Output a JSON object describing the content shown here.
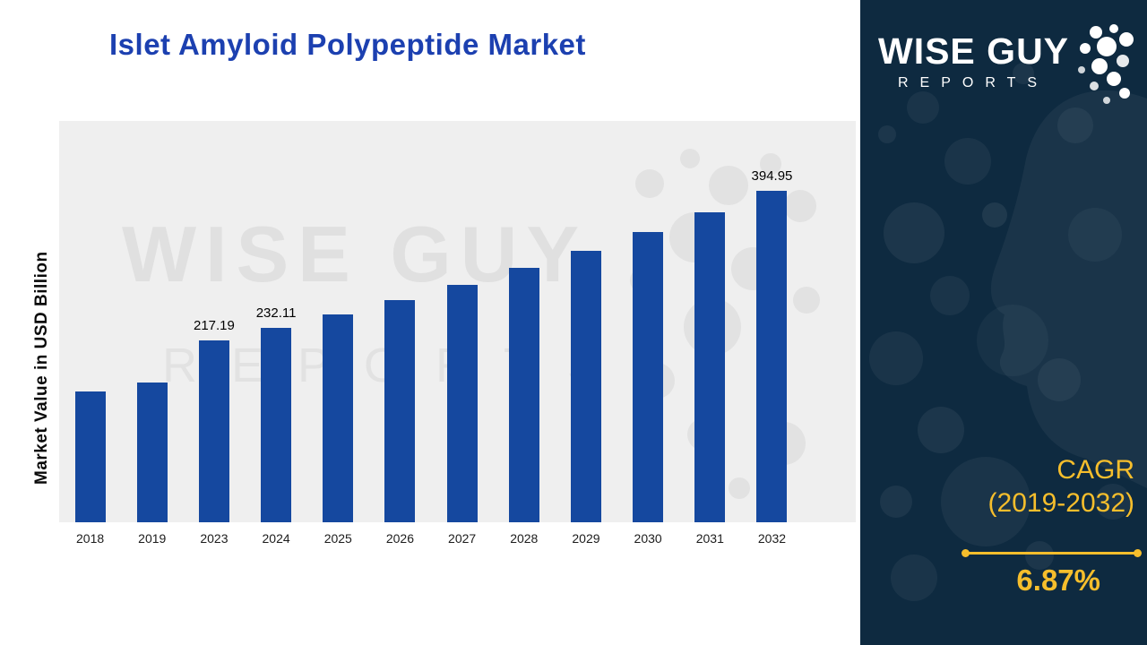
{
  "title": "Islet Amyloid Polypeptide Market",
  "watermark": {
    "line1": "WISE GUY",
    "line2": "REPORTS"
  },
  "chart_data": {
    "type": "bar",
    "title": "Islet Amyloid Polypeptide Market",
    "xlabel": "",
    "ylabel": "Market Value in USD Billion",
    "categories": [
      "2018",
      "2019",
      "2023",
      "2024",
      "2025",
      "2026",
      "2027",
      "2028",
      "2029",
      "2030",
      "2031",
      "2032"
    ],
    "values": [
      155.9,
      166.6,
      217.19,
      232.11,
      248.06,
      265.1,
      283.31,
      302.78,
      323.58,
      345.81,
      369.57,
      394.95
    ],
    "data_labels": [
      "",
      "",
      "217.19",
      "232.11",
      "",
      "",
      "",
      "",
      "",
      "",
      "",
      "394.95"
    ],
    "ylim": [
      0,
      478
    ],
    "grid": false,
    "legend": "none",
    "bar_color": "#15489f",
    "plot_background": "#efefef"
  },
  "side_panel": {
    "background": "#0e2a40",
    "accent": "#f6be2c",
    "logo": {
      "brand": "WISE GUY",
      "sub": "REPORTS",
      "face_icon": "dotted-head-profile"
    },
    "cagr": {
      "label": "CAGR",
      "period": "(2019-2032)",
      "value": "6.87%"
    }
  }
}
